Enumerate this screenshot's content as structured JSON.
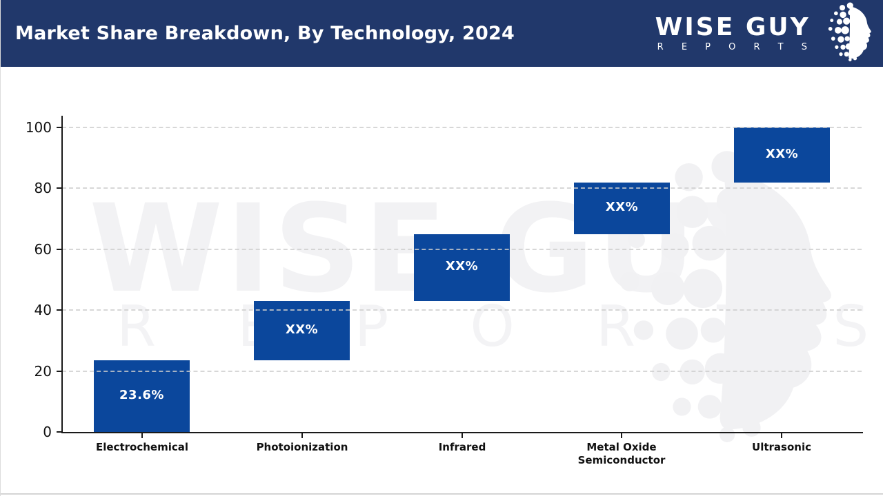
{
  "header": {
    "title": "Market Share Breakdown, By Technology, 2024",
    "bg_color": "#21386b",
    "logo": {
      "line1": "WISE GUY",
      "line2": "R E P O R T S"
    }
  },
  "watermark": {
    "line1": "WISE GUY",
    "line2": "R E P O R T S"
  },
  "chart_data": {
    "type": "bar",
    "subtype": "floating-waterfall",
    "title": "Market Share Breakdown, By Technology, 2024",
    "xlabel": "",
    "ylabel": "",
    "ylim": [
      0,
      100
    ],
    "yticks": [
      0,
      20,
      40,
      60,
      80,
      100
    ],
    "grid": "horizontal-dashed",
    "legend": "none",
    "bar_color": "#0b479c",
    "bar_label_color": "#ffffff",
    "categories": [
      "Electrochemical",
      "Photoionization",
      "Infrared",
      "Metal Oxide Semiconductor",
      "Ultrasonic"
    ],
    "segments": [
      {
        "category": "Electrochemical",
        "start": 0,
        "end": 23.6,
        "label": "23.6%"
      },
      {
        "category": "Photoionization",
        "start": 23.6,
        "end": 43,
        "label": "XX%"
      },
      {
        "category": "Infrared",
        "start": 43,
        "end": 65,
        "label": "XX%"
      },
      {
        "category": "Metal Oxide Semiconductor",
        "start": 65,
        "end": 81.8,
        "label": "XX%"
      },
      {
        "category": "Ultrasonic",
        "start": 81.8,
        "end": 100,
        "label": "XX%"
      }
    ]
  }
}
